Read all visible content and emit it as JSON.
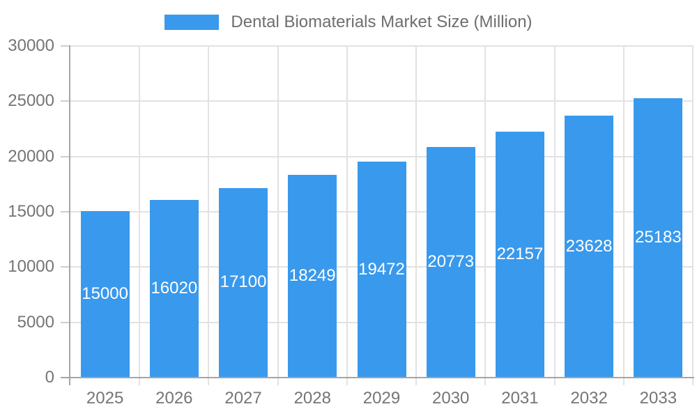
{
  "legend": {
    "label": "Dental Biomaterials Market Size (Million)"
  },
  "colors": {
    "bar": "#3999EC",
    "bar_label": "#FFFFFF",
    "axis_line": "#A5A5A5",
    "gridline": "#E2E2E2",
    "tick_mark": "#CFCFCF",
    "axis_text": "#757575",
    "legend_text": "#6E6E6E"
  },
  "chart_data": {
    "type": "bar",
    "title": "Dental Biomaterials Market Size (Million)",
    "categories": [
      "2025",
      "2026",
      "2027",
      "2028",
      "2029",
      "2030",
      "2031",
      "2032",
      "2033"
    ],
    "values": [
      15000,
      16020,
      17100,
      18249,
      19472,
      20773,
      22157,
      23628,
      25183
    ],
    "xlabel": "",
    "ylabel": "",
    "ylim": [
      0,
      30000
    ],
    "yticks": [
      0,
      5000,
      10000,
      15000,
      20000,
      25000,
      30000
    ],
    "grid": true,
    "legend_position": "top",
    "bar_label_position": "inside-center",
    "bar_label_color": "#FFFFFF"
  }
}
